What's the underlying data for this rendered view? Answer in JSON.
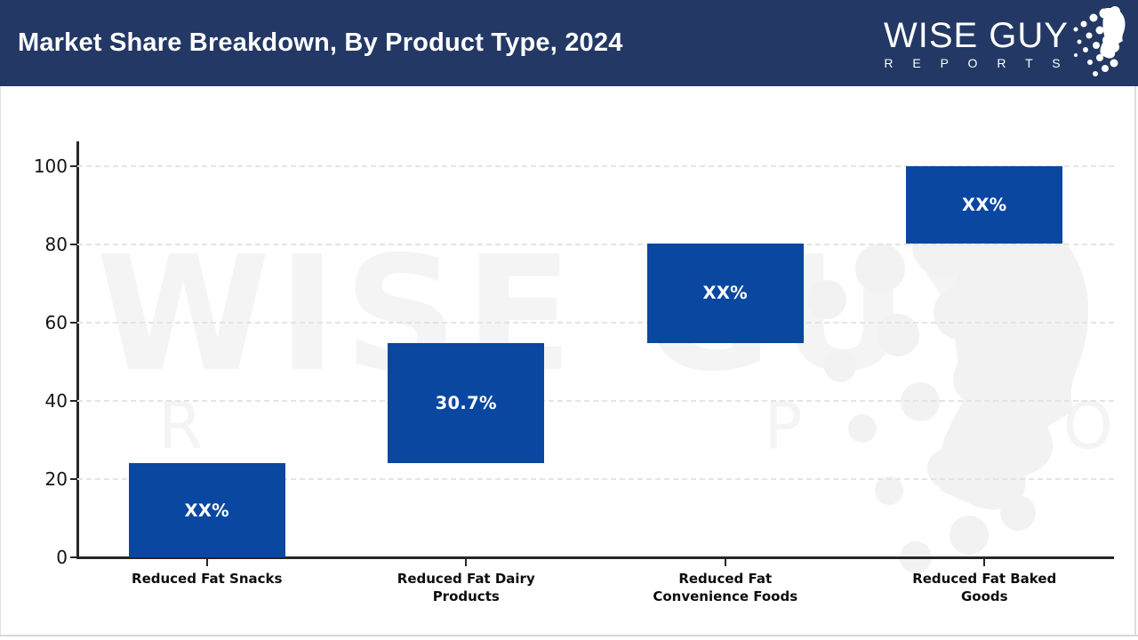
{
  "header": {
    "title": "Market Share Breakdown, By Product Type, 2024",
    "bg_color": "#233864",
    "logo": {
      "wordmark": "WISE GUY",
      "subtext": "R E P O R T S",
      "face_icon": "dotted-head-profile"
    }
  },
  "watermark": {
    "wordmark": "WISE GUY",
    "subtext": "R E P O R T S",
    "face_icon": "dotted-head-profile"
  },
  "chart_data": {
    "type": "bar",
    "subtype": "floating-segment-waterfall",
    "title": "Market Share Breakdown, By Product Type, 2024",
    "xlabel": "",
    "ylabel": "",
    "ylim": [
      0,
      100
    ],
    "yticks": [
      0,
      20,
      40,
      60,
      80,
      100
    ],
    "grid": "horizontal-dashed",
    "legend": "none",
    "bar_color": "#0a47a0",
    "bar_label_color": "#ffffff",
    "categories": [
      "Reduced Fat Snacks",
      "Reduced Fat Dairy Products",
      "Reduced Fat Convenience Foods",
      "Reduced Fat Baked Goods"
    ],
    "segments": [
      {
        "category_lines": [
          "Reduced Fat Snacks"
        ],
        "start": 0,
        "end": 24,
        "label": "XX%"
      },
      {
        "category_lines": [
          "Reduced Fat Dairy",
          "Products"
        ],
        "start": 24,
        "end": 54.7,
        "label": "30.7%"
      },
      {
        "category_lines": [
          "Reduced Fat",
          "Convenience Foods"
        ],
        "start": 54.7,
        "end": 80.3,
        "label": "XX%"
      },
      {
        "category_lines": [
          "Reduced Fat Baked",
          "Goods"
        ],
        "start": 80.3,
        "end": 100,
        "label": "XX%"
      }
    ]
  }
}
